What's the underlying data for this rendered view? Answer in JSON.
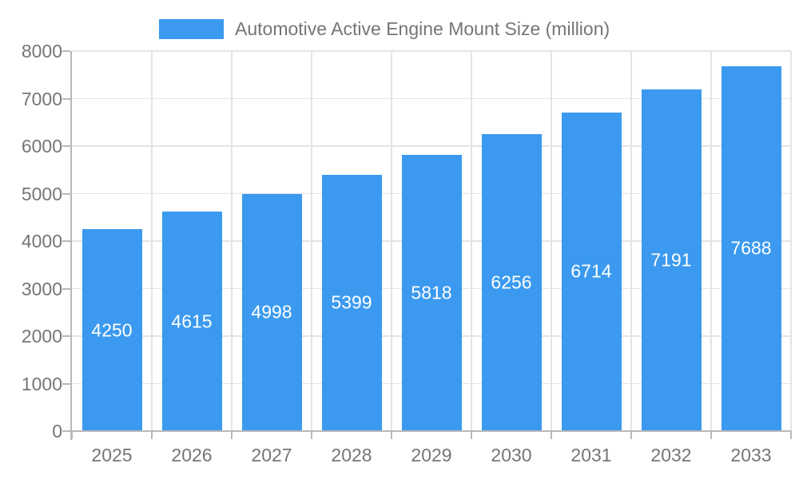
{
  "legend": {
    "label": "Automotive Active Engine Mount Size (million)"
  },
  "chart_data": {
    "type": "bar",
    "title": "Automotive Active Engine Mount Size (million)",
    "categories": [
      "2025",
      "2026",
      "2027",
      "2028",
      "2029",
      "2030",
      "2031",
      "2032",
      "2033"
    ],
    "values": [
      4250,
      4615,
      4998,
      5399,
      5818,
      6256,
      6714,
      7191,
      7688
    ],
    "xlabel": "",
    "ylabel": "",
    "ylim": [
      0,
      8000
    ],
    "yticks": [
      0,
      1000,
      2000,
      3000,
      4000,
      5000,
      6000,
      7000,
      8000
    ],
    "grid": true,
    "legend_position": "top",
    "value_labels": "inside-center",
    "colors": {
      "bar": "#3B9AEF",
      "value_label": "#ffffff",
      "axis_text": "#757575",
      "grid_line": "#e4e4e4",
      "axis_line": "#b9b9b9"
    }
  }
}
